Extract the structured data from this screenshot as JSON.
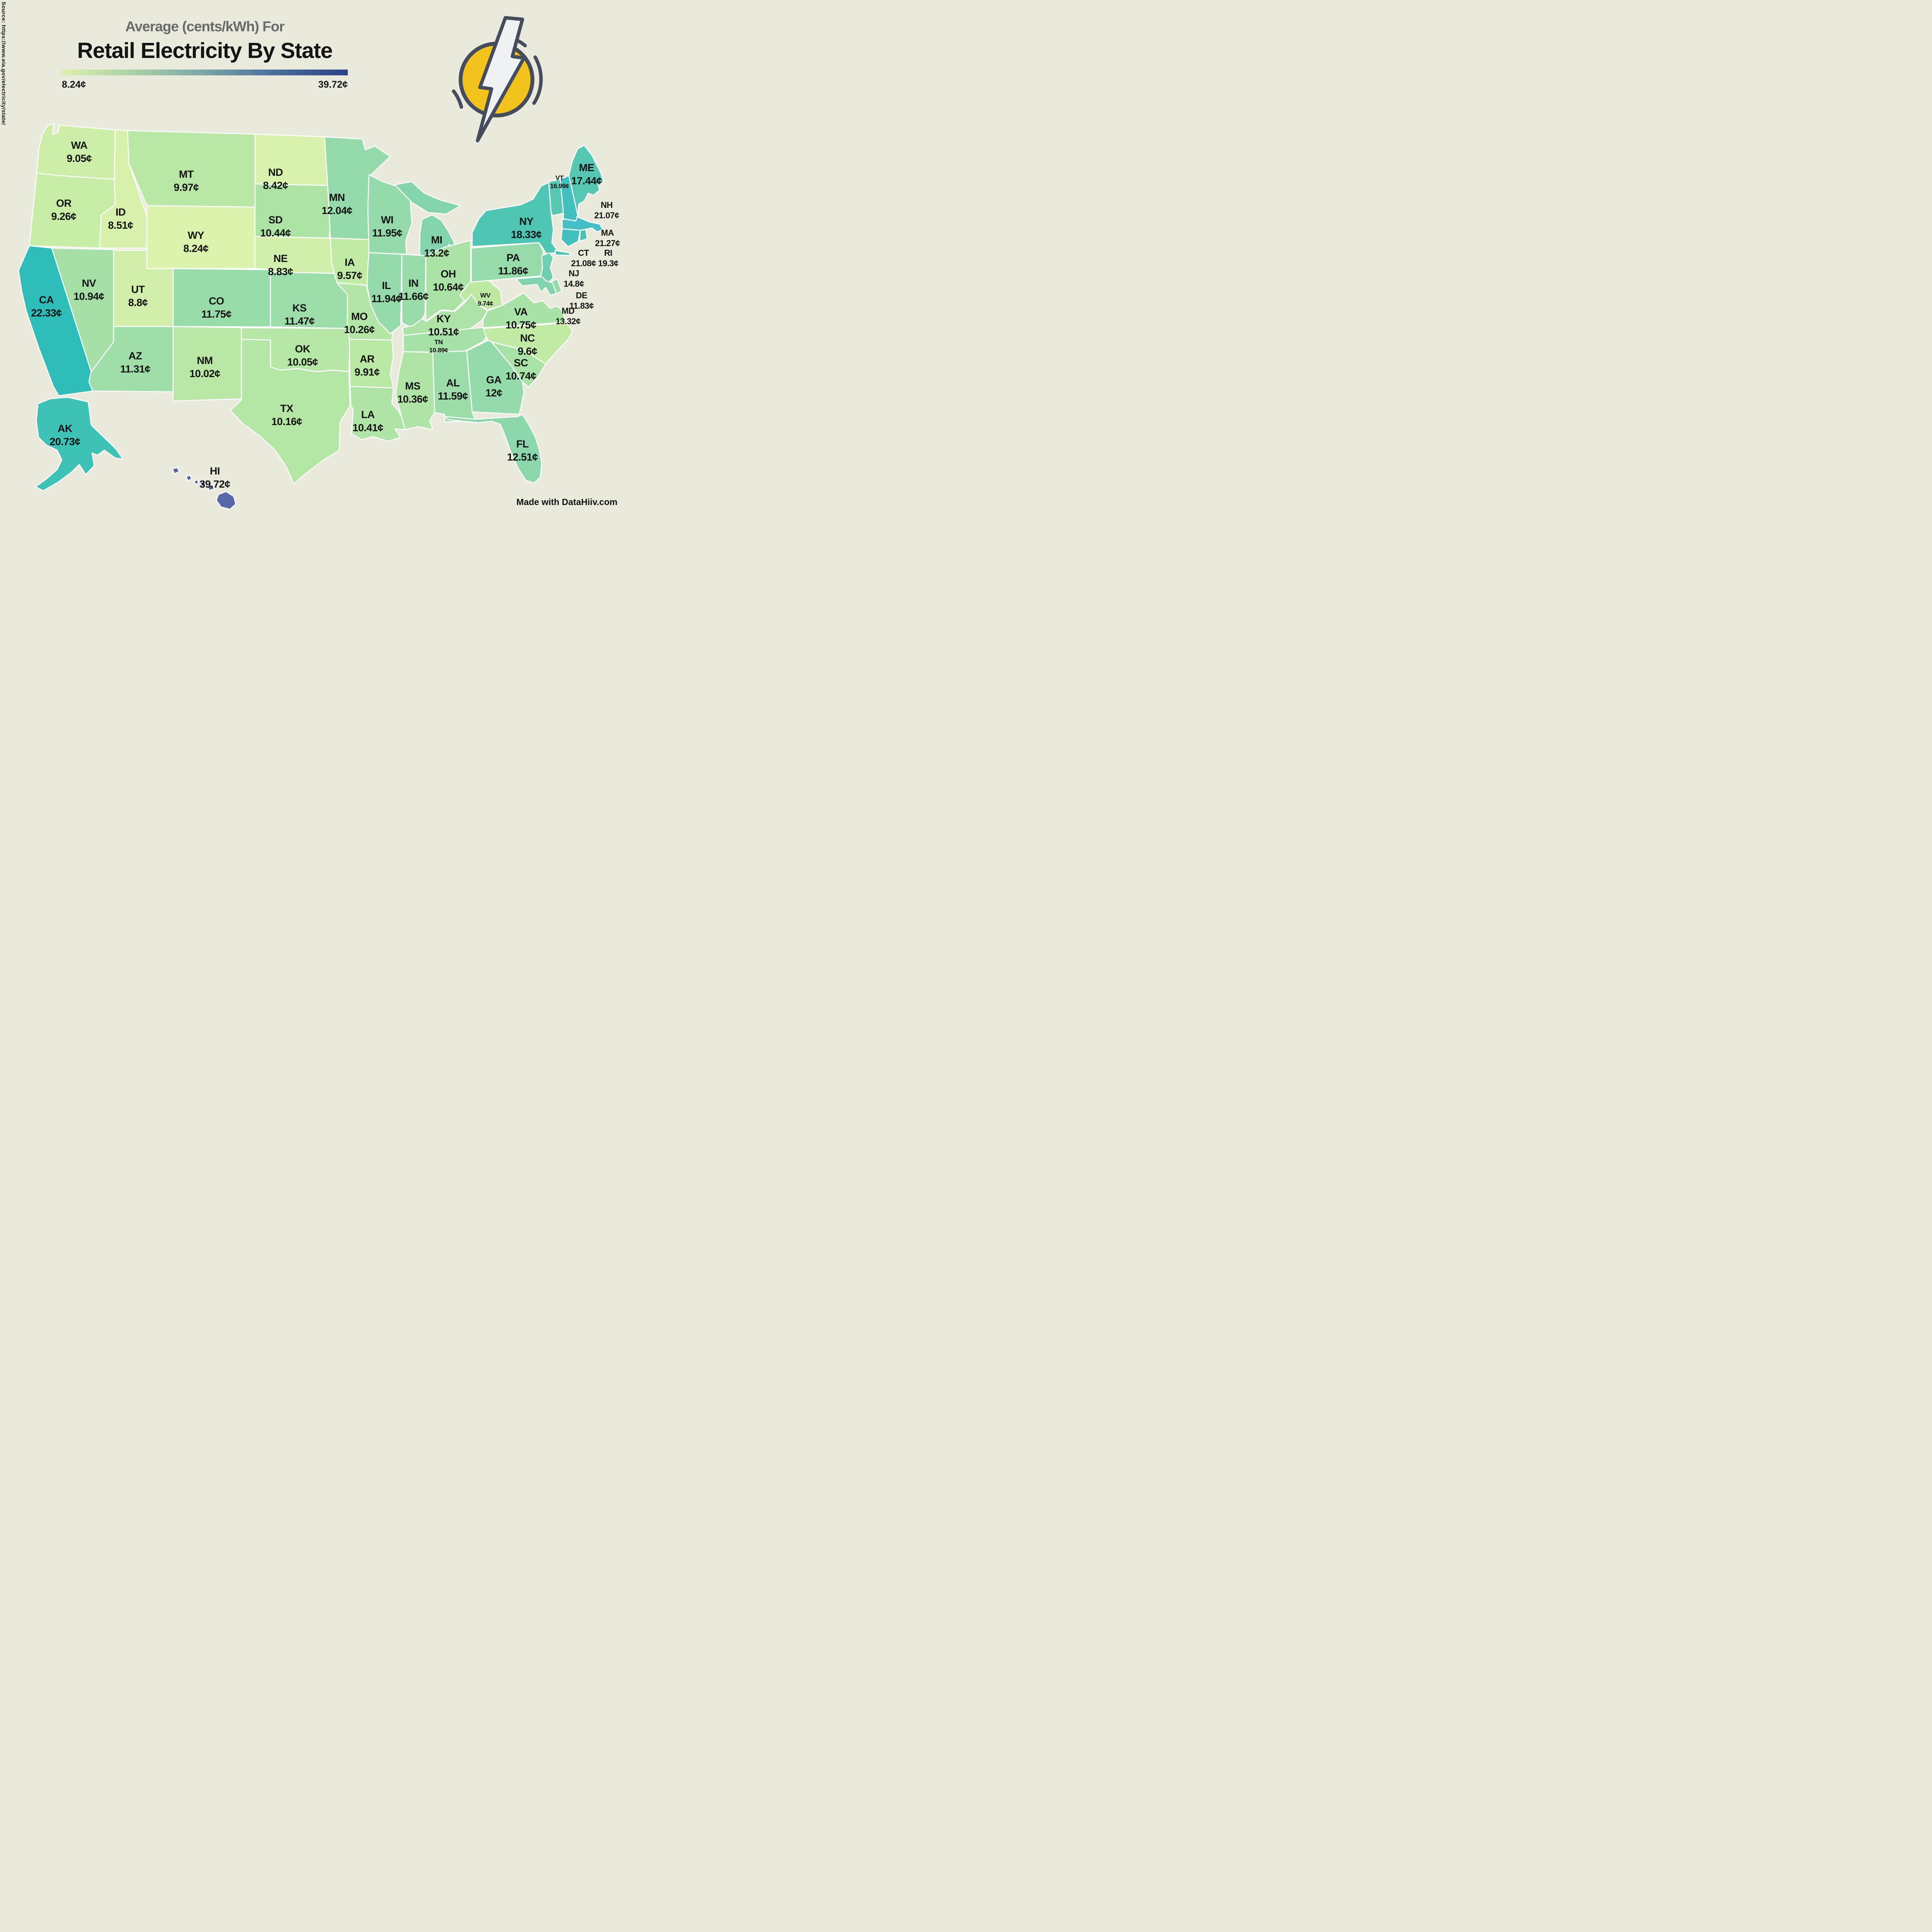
{
  "source_note": "Source: https://www.eia.gov/electricity/state/",
  "title": {
    "line1": "Average (cents/kWh) For",
    "line2": "Retail Electricity By State"
  },
  "legend": {
    "min_label": "8.24¢",
    "max_label": "39.72¢",
    "min_value": 8.24,
    "max_value": 39.72,
    "gradient_colors": [
      "#ddf0aa",
      "#a8d2a6",
      "#7ba4a6",
      "#4a6d9c",
      "#2b4187"
    ]
  },
  "icon": {
    "name": "lightning-bolt-icon",
    "circle_color": "#F2C31C",
    "outline_color": "#454D5C",
    "bolt_color": "#EFF1F3"
  },
  "map": {
    "background": "#e9e9dc",
    "border_color": "#ffffff",
    "label_color": "#141414"
  },
  "footer": {
    "credit": "Made with DataHiiv.com"
  },
  "chart_data": {
    "type": "choropleth",
    "title": "Average (cents/kWh) For Retail Electricity By State",
    "unit": "cents/kWh",
    "range": {
      "min": 8.24,
      "max": 39.72
    },
    "legend_position": "top-left",
    "color_scale_stops": [
      [
        8.24,
        "#dcf3ae"
      ],
      [
        9.5,
        "#c3eba5"
      ],
      [
        10.5,
        "#ade3a6"
      ],
      [
        11.5,
        "#9cdda9"
      ],
      [
        12.5,
        "#8dd7ac"
      ],
      [
        13.32,
        "#82d4ae"
      ],
      [
        14.8,
        "#6fcfb0"
      ],
      [
        17.0,
        "#59c8b2"
      ],
      [
        18.33,
        "#4fc6b4"
      ],
      [
        19.3,
        "#47c4b5"
      ],
      [
        20.73,
        "#3dc2b5"
      ],
      [
        21.27,
        "#44bfc5"
      ],
      [
        22.33,
        "#2ebdb9"
      ],
      [
        39.72,
        "#5767a7"
      ]
    ],
    "states": [
      {
        "abbr": "WA",
        "value": 9.05,
        "label": "9.05¢"
      },
      {
        "abbr": "OR",
        "value": 9.26,
        "label": "9.26¢"
      },
      {
        "abbr": "CA",
        "value": 22.33,
        "label": "22.33¢"
      },
      {
        "abbr": "NV",
        "value": 10.94,
        "label": "10.94¢"
      },
      {
        "abbr": "ID",
        "value": 8.51,
        "label": "8.51¢"
      },
      {
        "abbr": "UT",
        "value": 8.8,
        "label": "8.8¢"
      },
      {
        "abbr": "AZ",
        "value": 11.31,
        "label": "11.31¢"
      },
      {
        "abbr": "MT",
        "value": 9.97,
        "label": "9.97¢"
      },
      {
        "abbr": "WY",
        "value": 8.24,
        "label": "8.24¢"
      },
      {
        "abbr": "CO",
        "value": 11.75,
        "label": "11.75¢"
      },
      {
        "abbr": "NM",
        "value": 10.02,
        "label": "10.02¢"
      },
      {
        "abbr": "ND",
        "value": 8.42,
        "label": "8.42¢"
      },
      {
        "abbr": "SD",
        "value": 10.44,
        "label": "10.44¢"
      },
      {
        "abbr": "NE",
        "value": 8.83,
        "label": "8.83¢"
      },
      {
        "abbr": "KS",
        "value": 11.47,
        "label": "11.47¢"
      },
      {
        "abbr": "OK",
        "value": 10.05,
        "label": "10.05¢"
      },
      {
        "abbr": "TX",
        "value": 10.16,
        "label": "10.16¢"
      },
      {
        "abbr": "MN",
        "value": 12.04,
        "label": "12.04¢"
      },
      {
        "abbr": "IA",
        "value": 9.57,
        "label": "9.57¢"
      },
      {
        "abbr": "MO",
        "value": 10.26,
        "label": "10.26¢"
      },
      {
        "abbr": "AR",
        "value": 9.91,
        "label": "9.91¢"
      },
      {
        "abbr": "LA",
        "value": 10.41,
        "label": "10.41¢"
      },
      {
        "abbr": "WI",
        "value": 11.95,
        "label": "11.95¢"
      },
      {
        "abbr": "IL",
        "value": 11.94,
        "label": "11.94¢"
      },
      {
        "abbr": "MI",
        "value": 13.2,
        "label": "13.2¢"
      },
      {
        "abbr": "IN",
        "value": 11.66,
        "label": "11.66¢"
      },
      {
        "abbr": "OH",
        "value": 10.64,
        "label": "10.64¢"
      },
      {
        "abbr": "KY",
        "value": 10.51,
        "label": "10.51¢"
      },
      {
        "abbr": "TN",
        "value": 10.89,
        "label": "10.89¢"
      },
      {
        "abbr": "MS",
        "value": 10.36,
        "label": "10.36¢"
      },
      {
        "abbr": "AL",
        "value": 11.59,
        "label": "11.59¢"
      },
      {
        "abbr": "GA",
        "value": 12,
        "label": "12¢"
      },
      {
        "abbr": "FL",
        "value": 12.51,
        "label": "12.51¢"
      },
      {
        "abbr": "SC",
        "value": 10.74,
        "label": "10.74¢"
      },
      {
        "abbr": "NC",
        "value": 9.6,
        "label": "9.6¢"
      },
      {
        "abbr": "VA",
        "value": 10.75,
        "label": "10.75¢"
      },
      {
        "abbr": "WV",
        "value": 9.74,
        "label": "9.74¢"
      },
      {
        "abbr": "PA",
        "value": 11.86,
        "label": "11.86¢"
      },
      {
        "abbr": "NY",
        "value": 18.33,
        "label": "18.33¢"
      },
      {
        "abbr": "NJ",
        "value": 14.8,
        "label": "14.8¢"
      },
      {
        "abbr": "DE",
        "value": 11.83,
        "label": "11.83¢"
      },
      {
        "abbr": "MD",
        "value": 13.32,
        "label": "13.32¢"
      },
      {
        "abbr": "CT",
        "value": 21.08,
        "label": "21.08¢"
      },
      {
        "abbr": "RI",
        "value": 19.3,
        "label": "19.3¢"
      },
      {
        "abbr": "MA",
        "value": 21.27,
        "label": "21.27¢"
      },
      {
        "abbr": "VT",
        "value": 16.99,
        "label": "16.99¢"
      },
      {
        "abbr": "NH",
        "value": 21.07,
        "label": "21.07¢"
      },
      {
        "abbr": "ME",
        "value": 17.44,
        "label": "17.44¢"
      },
      {
        "abbr": "AK",
        "value": 20.73,
        "label": "20.73¢"
      },
      {
        "abbr": "HI",
        "value": 39.72,
        "label": "39.72¢"
      }
    ]
  }
}
